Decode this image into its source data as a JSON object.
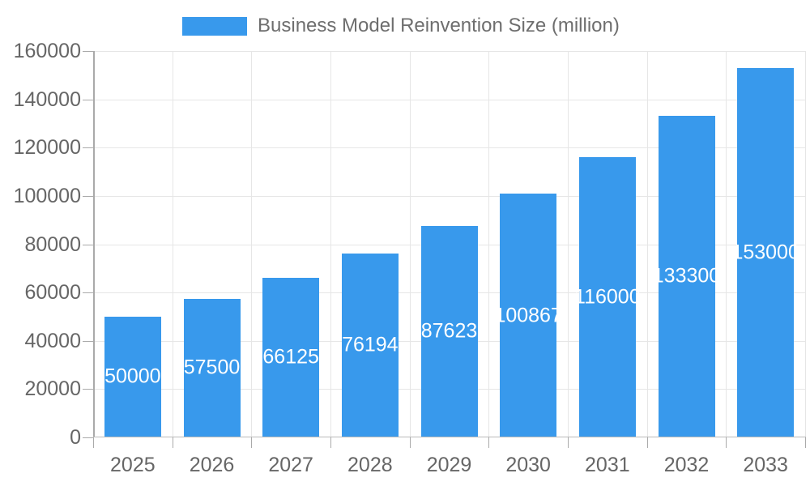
{
  "legend": {
    "label": "Business Model Reinvention Size (million)"
  },
  "colors": {
    "bar": "#3899EC",
    "grid": "#e6e6e6",
    "axis_line": "#aaaaaa",
    "tick_label": "#666666",
    "legend_label": "#6e6e6e",
    "bar_value_label": "#ffffff",
    "background": "#ffffff"
  },
  "chart_data": {
    "type": "bar",
    "title": "Business Model Reinvention Size (million)",
    "categories": [
      "2025",
      "2026",
      "2027",
      "2028",
      "2029",
      "2030",
      "2031",
      "2032",
      "2033"
    ],
    "series": [
      {
        "name": "Business Model Reinvention Size (million)",
        "values": [
          50000,
          57500,
          66125,
          76194,
          87623,
          100867,
          116000,
          133300,
          153000
        ]
      }
    ],
    "xlabel": "",
    "ylabel": "",
    "ylim": [
      0,
      160000
    ],
    "yticks": [
      0,
      20000,
      40000,
      60000,
      80000,
      100000,
      120000,
      140000,
      160000
    ],
    "grid": true,
    "legend_position": "top-center",
    "bar_label_position": "inside-center"
  }
}
